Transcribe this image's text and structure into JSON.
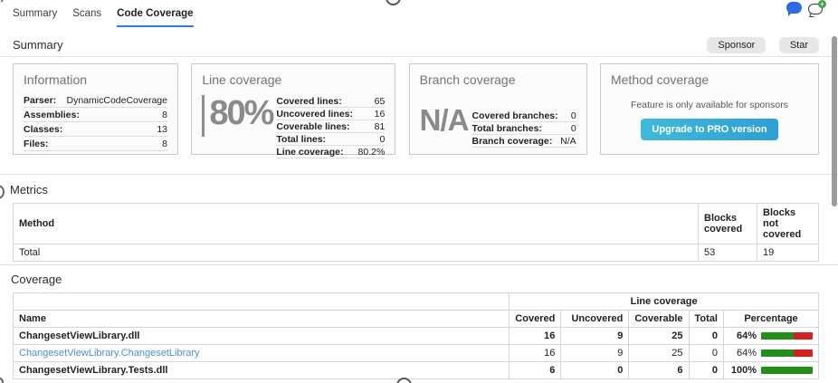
{
  "tabs": {
    "items": [
      {
        "label": "Summary"
      },
      {
        "label": "Scans"
      },
      {
        "label": "Code Coverage"
      }
    ],
    "active": "Code Coverage"
  },
  "summary": {
    "title": "Summary",
    "sponsor_button": "Sponsor",
    "star_button": "Star",
    "cards": {
      "information": {
        "title": "Information",
        "rows": [
          {
            "label": "Parser:",
            "value": "DynamicCodeCoverage"
          },
          {
            "label": "Assemblies:",
            "value": "8"
          },
          {
            "label": "Classes:",
            "value": "13"
          },
          {
            "label": "Files:",
            "value": "8"
          }
        ]
      },
      "line_coverage": {
        "title": "Line coverage",
        "big_value": "80%",
        "rows": [
          {
            "label": "Covered lines:",
            "value": "65"
          },
          {
            "label": "Uncovered lines:",
            "value": "16"
          },
          {
            "label": "Coverable lines:",
            "value": "81"
          },
          {
            "label": "Total lines:",
            "value": "0"
          },
          {
            "label": "Line coverage:",
            "value": "80.2%"
          }
        ]
      },
      "branch_coverage": {
        "title": "Branch coverage",
        "big_value": "N/A",
        "rows": [
          {
            "label": "Covered branches:",
            "value": "0"
          },
          {
            "label": "Total branches:",
            "value": "0"
          },
          {
            "label": "Branch coverage:",
            "value": "N/A"
          }
        ]
      },
      "method_coverage": {
        "title": "Method coverage",
        "note": "Feature is only available for sponsors",
        "upgrade_button": "Upgrade to PRO version"
      }
    }
  },
  "metrics": {
    "title": "Metrics",
    "table": {
      "headers": [
        "Method",
        "Blocks covered",
        "Blocks not covered"
      ],
      "rows": [
        {
          "method": "Total",
          "blocks_covered": "53",
          "blocks_not_covered": "19"
        }
      ]
    }
  },
  "coverage": {
    "title": "Coverage",
    "group_header": "Line coverage",
    "headers": [
      "Name",
      "Covered",
      "Uncovered",
      "Coverable",
      "Total",
      "Percentage"
    ],
    "rows": [
      {
        "name": "ChangesetViewLibrary.dll",
        "kind": "assembly",
        "covered": "16",
        "uncovered": "9",
        "coverable": "25",
        "total": "0",
        "percentage": "64%",
        "pct": 64
      },
      {
        "name": "ChangesetViewLibrary.ChangesetLibrary",
        "kind": "class",
        "covered": "16",
        "uncovered": "9",
        "coverable": "25",
        "total": "0",
        "percentage": "64%",
        "pct": 64
      },
      {
        "name": "ChangesetViewLibrary.Tests.dll",
        "kind": "assembly",
        "covered": "6",
        "uncovered": "0",
        "coverable": "6",
        "total": "0",
        "percentage": "100%",
        "pct": 100
      }
    ]
  },
  "icons": {
    "comment_filled": "comment-filled-icon",
    "comment_add": "comment-add-icon"
  },
  "colors": {
    "covered_green": "#1f9116",
    "uncovered_red": "#d61f1f",
    "tab_underline": "#2b7de9",
    "link_blue": "#4a90d2",
    "upgrade_gradient_start": "#3fbadb",
    "upgrade_gradient_end": "#2d9fd6",
    "comment_blue": "#2b6be4",
    "badge_green": "#3aa843"
  }
}
